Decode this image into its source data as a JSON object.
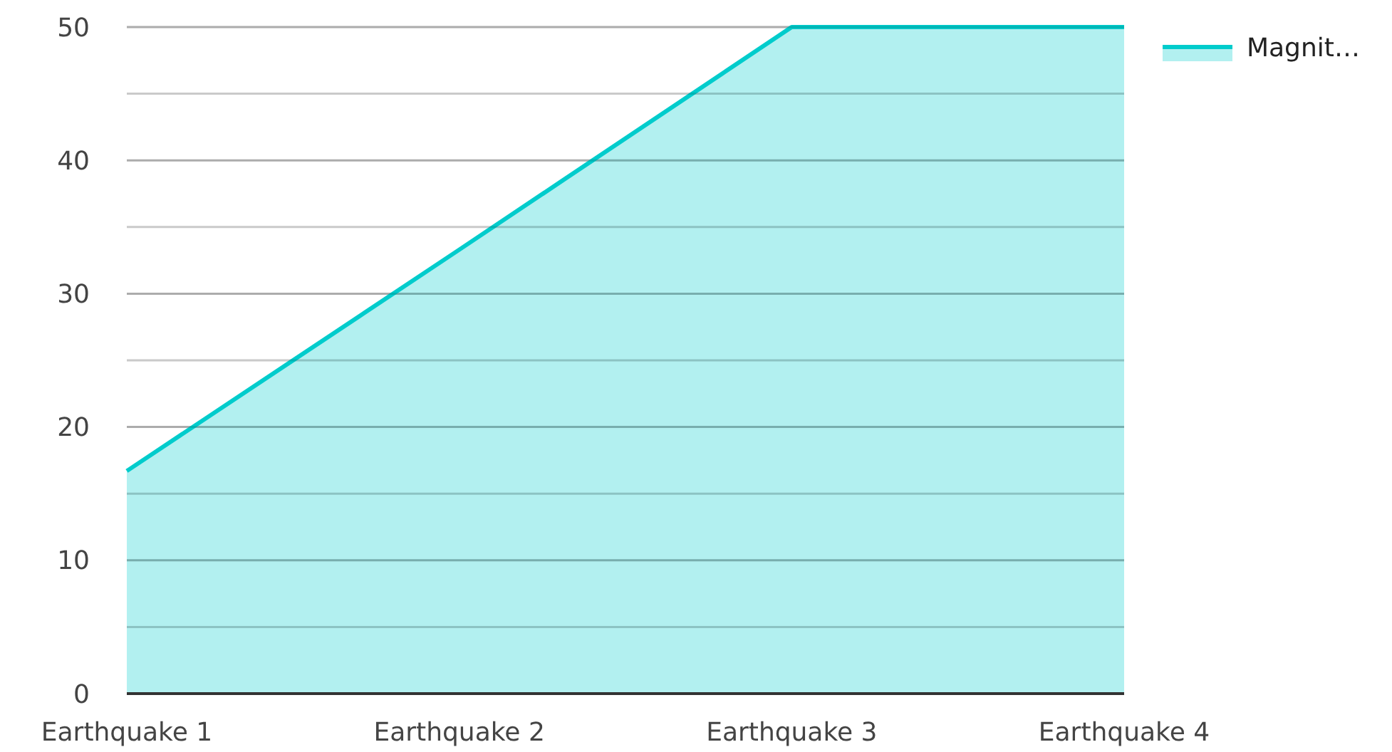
{
  "chart_data": {
    "type": "area",
    "categories": [
      "Earthquake 1",
      "Earthquake 2",
      "Earthquake 3",
      "Earthquake 4"
    ],
    "series": [
      {
        "name": "Magnit…",
        "color": "#00cccc",
        "values": [
          16.7,
          33.3,
          50,
          50
        ]
      }
    ],
    "ylim": [
      0,
      50
    ],
    "yticks": [
      0,
      {
        "value": 5,
        "label": null
      },
      10,
      {
        "value": 15,
        "label": null
      },
      20,
      {
        "value": 25,
        "label": null
      },
      30,
      {
        "value": 35,
        "label": null
      },
      40,
      {
        "value": 45,
        "label": null
      },
      50
    ],
    "grid": "y",
    "legend": "top right"
  }
}
